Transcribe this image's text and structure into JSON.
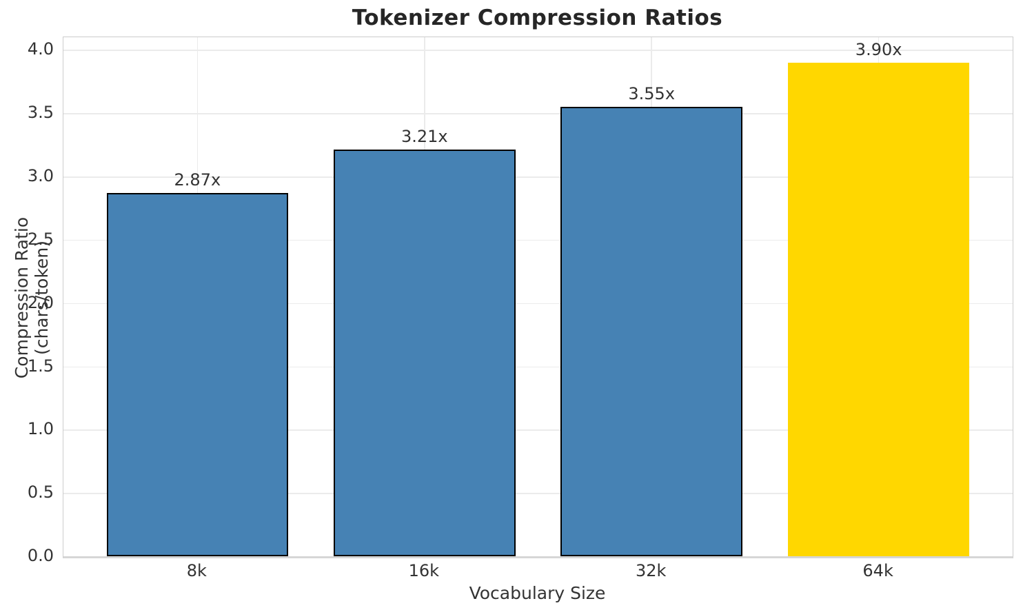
{
  "title": "Tokenizer Compression Ratios",
  "chart_data": {
    "type": "bar",
    "title": "Tokenizer Compression Ratios",
    "xlabel": "Vocabulary Size",
    "ylabel": "Compression Ratio (chars/token)",
    "categories": [
      "8k",
      "16k",
      "32k",
      "64k"
    ],
    "values": [
      2.87,
      3.21,
      3.55,
      3.9
    ],
    "bar_labels": [
      "2.87x",
      "3.21x",
      "3.55x",
      "3.90x"
    ],
    "bar_colors": [
      "#4682B4",
      "#4682B4",
      "#4682B4",
      "#FFD700"
    ],
    "bar_edge_colors": [
      "#000000",
      "#000000",
      "#000000",
      "none"
    ],
    "highlight_index": 3,
    "ylim": [
      0,
      4.1
    ],
    "yticks": [
      0.0,
      0.5,
      1.0,
      1.5,
      2.0,
      2.5,
      3.0,
      3.5,
      4.0
    ],
    "ytick_labels": [
      "0.0",
      "0.5",
      "1.0",
      "1.5",
      "2.0",
      "2.5",
      "3.0",
      "3.5",
      "4.0"
    ],
    "grid": true,
    "legend": null,
    "colors": {
      "bar_default": "#4682B4",
      "bar_highlight": "#FFD700",
      "bar_edge": "#000000",
      "grid": "#ebebeb",
      "spine": "#cccccc",
      "text": "#333333",
      "title_text": "#262626",
      "background": "#ffffff"
    }
  }
}
